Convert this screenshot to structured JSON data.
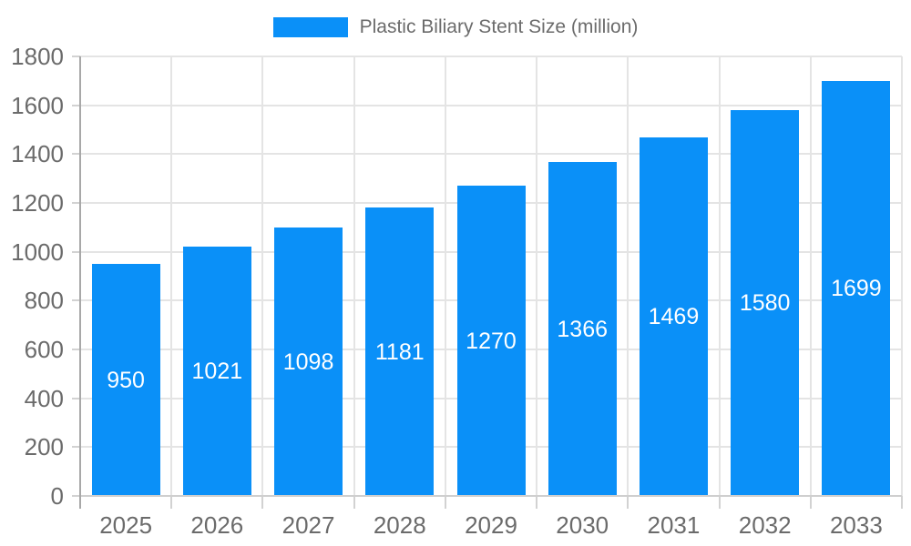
{
  "legend": {
    "label": "Plastic Biliary Stent Size (million)"
  },
  "chart_data": {
    "type": "bar",
    "title": "Plastic Biliary Stent Size (million)",
    "categories": [
      "2025",
      "2026",
      "2027",
      "2028",
      "2029",
      "2030",
      "2031",
      "2032",
      "2033"
    ],
    "values": [
      950,
      1021,
      1098,
      1181,
      1270,
      1366,
      1469,
      1580,
      1699
    ],
    "xlabel": "",
    "ylabel": "",
    "ylim": [
      0,
      1800
    ],
    "ytick_step": 200,
    "grid": true,
    "legend_position": "top",
    "colors": {
      "bar": "#0a90f8",
      "grid": "#e4e4e4",
      "tick": "#d2d2d2",
      "axis_line": "#a8a8a8",
      "baseline": "#cfcfcf",
      "text": "#6b6b6b",
      "value_label": "#ffffff",
      "background": "#ffffff"
    }
  }
}
